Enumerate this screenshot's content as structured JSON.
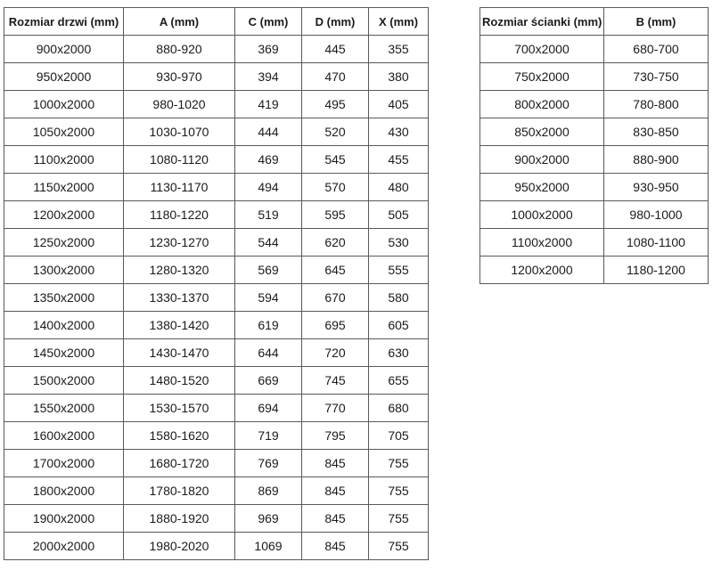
{
  "door_table": {
    "headers": [
      "Rozmiar drzwi (mm)",
      "A (mm)",
      "C (mm)",
      "D (mm)",
      "X (mm)"
    ],
    "rows": [
      [
        "900x2000",
        "880-920",
        "369",
        "445",
        "355"
      ],
      [
        "950x2000",
        "930-970",
        "394",
        "470",
        "380"
      ],
      [
        "1000x2000",
        "980-1020",
        "419",
        "495",
        "405"
      ],
      [
        "1050x2000",
        "1030-1070",
        "444",
        "520",
        "430"
      ],
      [
        "1100x2000",
        "1080-1120",
        "469",
        "545",
        "455"
      ],
      [
        "1150x2000",
        "1130-1170",
        "494",
        "570",
        "480"
      ],
      [
        "1200x2000",
        "1180-1220",
        "519",
        "595",
        "505"
      ],
      [
        "1250x2000",
        "1230-1270",
        "544",
        "620",
        "530"
      ],
      [
        "1300x2000",
        "1280-1320",
        "569",
        "645",
        "555"
      ],
      [
        "1350x2000",
        "1330-1370",
        "594",
        "670",
        "580"
      ],
      [
        "1400x2000",
        "1380-1420",
        "619",
        "695",
        "605"
      ],
      [
        "1450x2000",
        "1430-1470",
        "644",
        "720",
        "630"
      ],
      [
        "1500x2000",
        "1480-1520",
        "669",
        "745",
        "655"
      ],
      [
        "1550x2000",
        "1530-1570",
        "694",
        "770",
        "680"
      ],
      [
        "1600x2000",
        "1580-1620",
        "719",
        "795",
        "705"
      ],
      [
        "1700x2000",
        "1680-1720",
        "769",
        "845",
        "755"
      ],
      [
        "1800x2000",
        "1780-1820",
        "869",
        "845",
        "755"
      ],
      [
        "1900x2000",
        "1880-1920",
        "969",
        "845",
        "755"
      ],
      [
        "2000x2000",
        "1980-2020",
        "1069",
        "845",
        "755"
      ]
    ]
  },
  "wall_table": {
    "headers": [
      "Rozmiar ścianki (mm)",
      "B (mm)"
    ],
    "rows": [
      [
        "700x2000",
        "680-700"
      ],
      [
        "750x2000",
        "730-750"
      ],
      [
        "800x2000",
        "780-800"
      ],
      [
        "850x2000",
        "830-850"
      ],
      [
        "900x2000",
        "880-900"
      ],
      [
        "950x2000",
        "930-950"
      ],
      [
        "1000x2000",
        "980-1000"
      ],
      [
        "1100x2000",
        "1080-1100"
      ],
      [
        "1200x2000",
        "1180-1200"
      ]
    ]
  },
  "colors": {
    "border": "#595959",
    "text": "#1a1a1a",
    "background": "#ffffff"
  }
}
